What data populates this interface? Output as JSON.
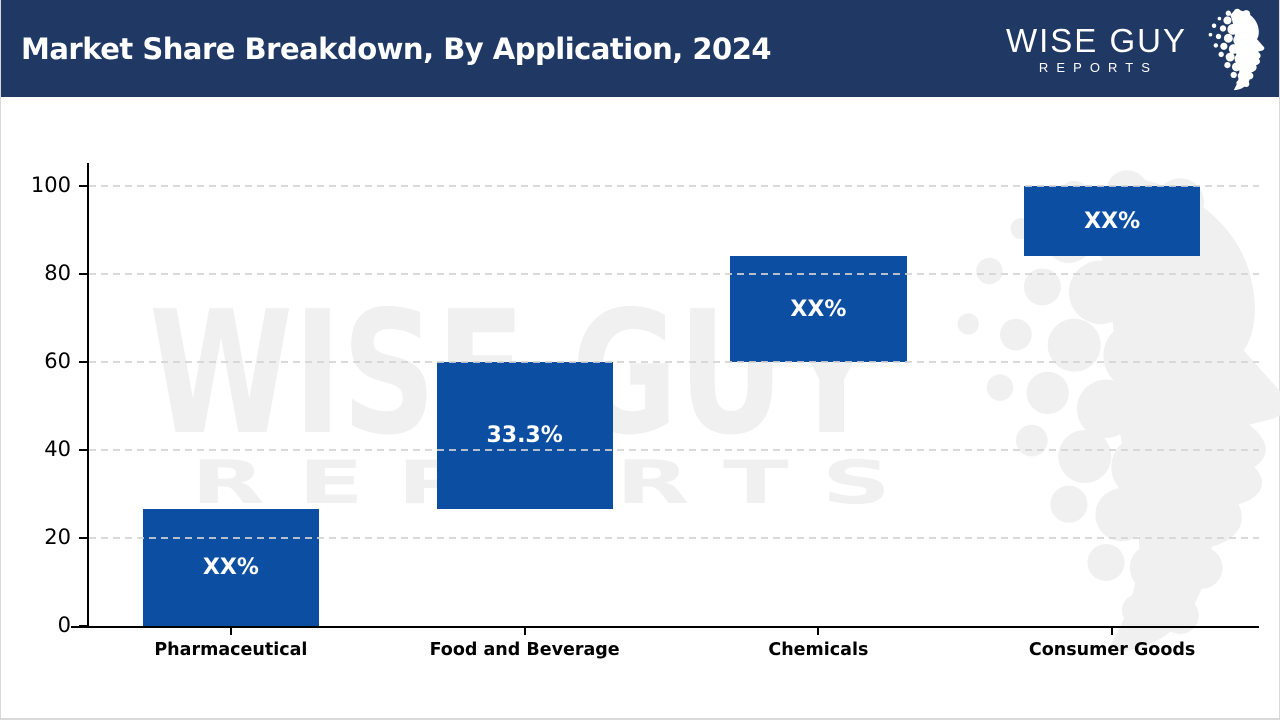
{
  "header": {
    "title": "Market Share Breakdown, By Application, 2024",
    "logo": {
      "line1": "WISE GUY",
      "line2": "REPORTS"
    }
  },
  "watermark": {
    "line1": "WISE GUY",
    "line2": "R E P O R T S"
  },
  "colors": {
    "header_bg": "#203864",
    "bar": "#0b4ea2",
    "grid": "#d4d4d4",
    "axis": "#000000",
    "bar_label": "#ffffff",
    "watermark": "#f0f0f0",
    "title_text": "#ffffff"
  },
  "chart_data": {
    "type": "bar",
    "subtype": "waterfall",
    "title": "Market Share Breakdown, By Application, 2024",
    "xlabel": "",
    "ylabel": "",
    "categories": [
      "Pharmaceutical",
      "Food and Beverage",
      "Chemicals",
      "Consumer Goods"
    ],
    "segments": [
      {
        "category": "Pharmaceutical",
        "start": 0,
        "end": 26.7,
        "value": 26.7,
        "label": "XX%"
      },
      {
        "category": "Food and Beverage",
        "start": 26.7,
        "end": 60,
        "value": 33.3,
        "label": "33.3%"
      },
      {
        "category": "Chemicals",
        "start": 60,
        "end": 84,
        "value": 24,
        "label": "XX%"
      },
      {
        "category": "Consumer Goods",
        "start": 84,
        "end": 100,
        "value": 16,
        "label": "XX%"
      }
    ],
    "y_ticks": [
      0,
      20,
      40,
      60,
      80,
      100
    ],
    "ylim": [
      0,
      105
    ],
    "grid": "dashed horizontal, drawn over bars",
    "legend": "none"
  }
}
